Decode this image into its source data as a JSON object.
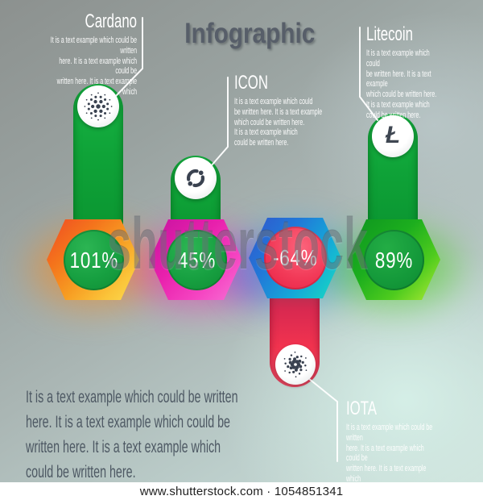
{
  "header": {
    "title": "Infographic"
  },
  "blocks": {
    "cardano": {
      "title": "Cardano",
      "body": "It is a text example which could be written\nhere. It is a text example which could be\nwritten here. It is a text example which",
      "value": "101%",
      "icon": "cardano-dots-logo"
    },
    "icon": {
      "title": "ICON",
      "body": "It is a text example which could\nbe written here. It is a text example\nwhich could be written here.\nIt is a text example which\ncould be written here.",
      "value": "45%",
      "icon": "icon-ring-logo"
    },
    "iota": {
      "title": "IOTA",
      "body": "It is a text example which could be written\nhere. It is a text example which could be\nwritten here. It is a text example which\ncould be written here.",
      "value": "-64%",
      "icon": "iota-swirl-logo"
    },
    "litecoin": {
      "title": "Litecoin",
      "body": "It is a text example which could\nbe written here. It is a text example\nwhich could be written here.\nIt is a text example which\ncould be written here.",
      "value": "89%",
      "icon": "litecoin-glyph",
      "glyph": "Ł"
    }
  },
  "footer": {
    "paragraph": "It is a text example which could be written\nhere. It is a text example which could be\nwritten here. It is a text example which\ncould be written here."
  },
  "watermark": {
    "center": "shutterstock",
    "bottom": "www.shutterstock.com · 1054851341"
  },
  "colors": {
    "pill_green": "#0fa338",
    "pill_red": "#f2334f",
    "hex_orange": "#f79c22",
    "hex_pink": "#e820ac",
    "hex_blue": "#2179d8",
    "hex_green": "#2db31e",
    "value_circle_green": "#17a041",
    "value_circle_red": "#f23a58",
    "logo_dark": "#3a4250",
    "title_gray": "#575e69",
    "body_dark_text": "#4d5863"
  }
}
